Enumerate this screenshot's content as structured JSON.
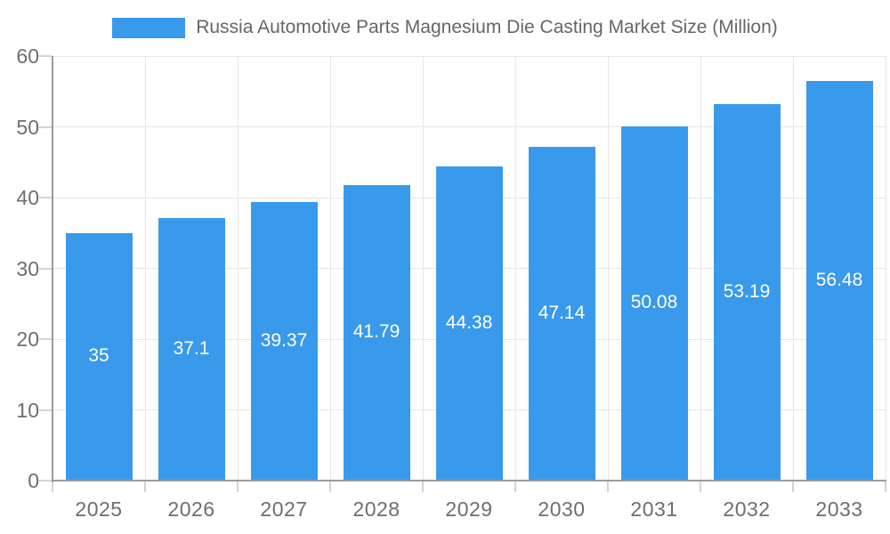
{
  "legend": {
    "label": "Russia Automotive Parts Magnesium Die Casting Market Size (Million)"
  },
  "chart_data": {
    "type": "bar",
    "title": "Russia Automotive Parts Magnesium Die Casting Market Size (Million)",
    "categories": [
      "2025",
      "2026",
      "2027",
      "2028",
      "2029",
      "2030",
      "2031",
      "2032",
      "2033"
    ],
    "values": [
      35,
      37.1,
      39.37,
      41.79,
      44.38,
      47.14,
      50.08,
      53.19,
      56.48
    ],
    "value_labels": [
      "35",
      "37.1",
      "39.37",
      "41.79",
      "44.38",
      "47.14",
      "50.08",
      "53.19",
      "56.48"
    ],
    "xlabel": "",
    "ylabel": "",
    "ylim": [
      0,
      60
    ],
    "yticks": [
      0,
      10,
      20,
      30,
      40,
      50,
      60
    ],
    "grid": true,
    "legend_position": "top-center",
    "value_label_position": "inside-center"
  },
  "colors": {
    "background": "#ffffff",
    "bar": "#399aec",
    "bar_label": "#ffffff",
    "grid": "#e6e6e6",
    "axis_line": "#9b9b9b",
    "tick": "#d4d4d4",
    "axis_text": "#6e6e6e",
    "legend_text": "#666666"
  }
}
